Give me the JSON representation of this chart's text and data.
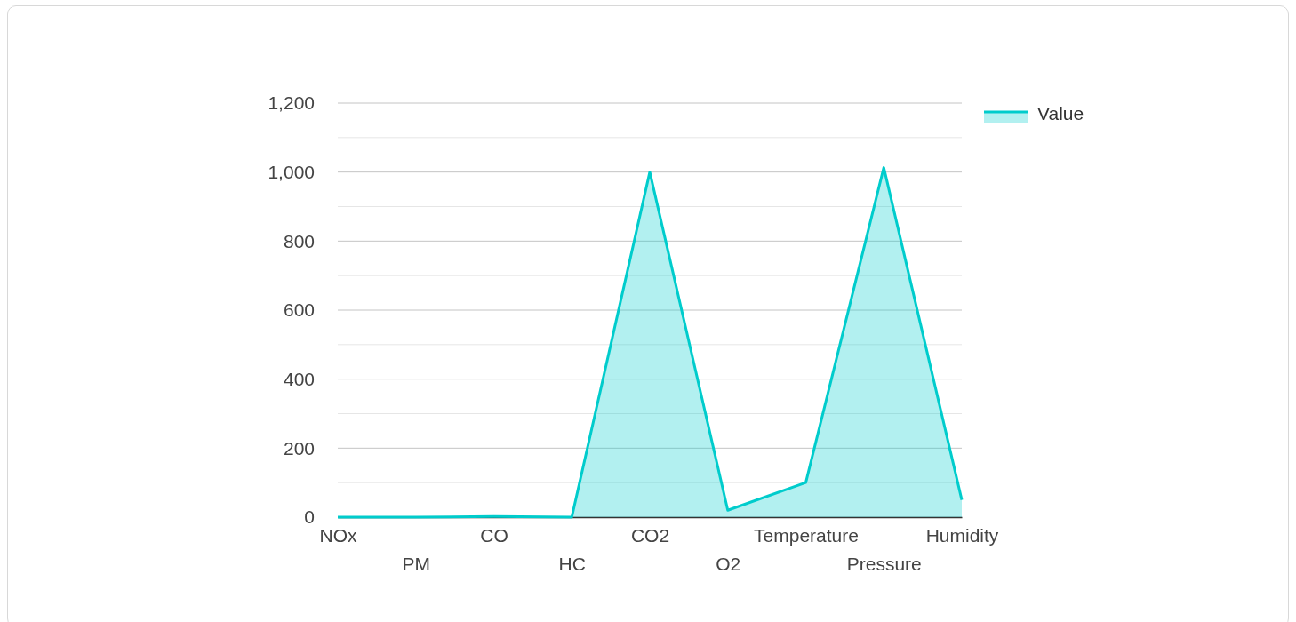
{
  "chart_data": {
    "type": "area",
    "categories": [
      "NOx",
      "PM",
      "CO",
      "HC",
      "CO2",
      "O2",
      "Temperature",
      "Pressure",
      "Humidity"
    ],
    "series": [
      {
        "name": "Value",
        "color": "#00cccc",
        "values": [
          0,
          0,
          2,
          0,
          1000,
          20,
          100,
          1013,
          50
        ]
      }
    ],
    "ylim": [
      0,
      1200
    ],
    "yticks": [
      0,
      {
        "value": 100,
        "label": null
      },
      200,
      {
        "value": 300,
        "label": null
      },
      400,
      {
        "value": 500,
        "label": null
      },
      600,
      {
        "value": 700,
        "label": null
      },
      800,
      {
        "value": 900,
        "label": null
      },
      {
        "value": 1000,
        "label": "1,000"
      },
      {
        "value": 1100,
        "label": null
      },
      {
        "value": 1200,
        "label": "1,200"
      }
    ],
    "grid": "y",
    "legend": "top right"
  }
}
